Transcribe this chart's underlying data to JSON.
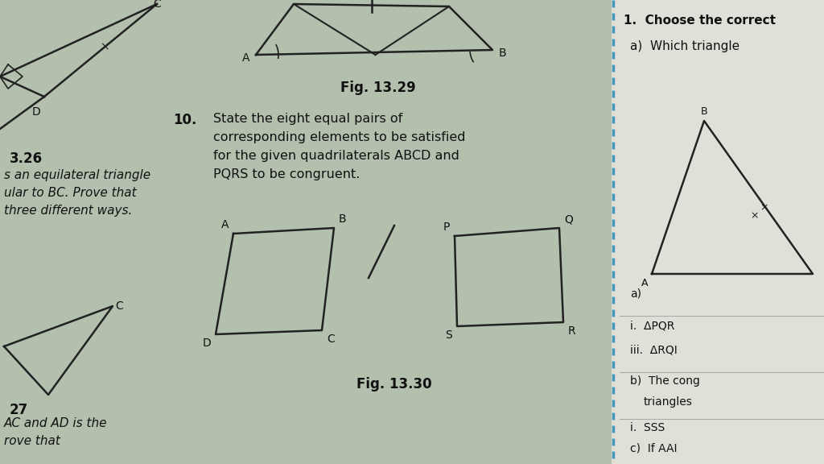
{
  "bg_left": "#b2c0ad",
  "bg_right": "#ddddd5",
  "fig_title": "Fig. 13.29",
  "fig_title2": "Fig. 13.30",
  "problem_number": "10.",
  "problem_text_line1": "State the eight equal pairs of",
  "problem_text_line2": "corresponding elements to be satisfied",
  "problem_text_line3": "for the given quadrilaterals ABCD and",
  "problem_text_line4": "PQRS to be congruent.",
  "left_num": "3.26",
  "left_text_line1": "s an equilateral triangle",
  "left_text_line2": "ular to BC. Prove that",
  "left_text_line3": "three different ways.",
  "left_num2": "27",
  "left_text2_line1": "AC and AD is the",
  "left_text2_line2": "rove that",
  "right_text_line1": "1.  Choose the correct",
  "right_text_line2": "a)  Which triangle",
  "right_label_a": "a)",
  "right_tri_labels": [
    "A",
    "B"
  ],
  "right_text_line3": "i.  ΔPQR",
  "right_text_line4": "iii.  ΔRQI",
  "right_text_line5": "b)  The cong",
  "right_text_line6": "triangles",
  "right_text_line7": "i.  SSS",
  "right_text_line8": "c)  If AAI",
  "dashed_line_color": "#4499bb",
  "draw_color": "#222222",
  "text_color": "#111111",
  "right_bg": "#e0e0d8"
}
